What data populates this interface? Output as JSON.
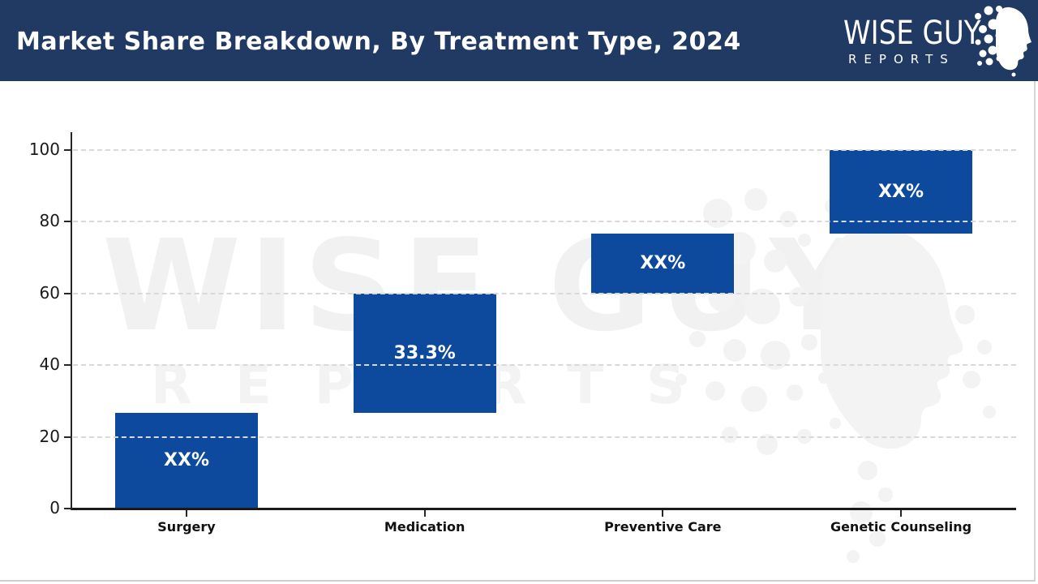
{
  "header": {
    "title": "Market Share Breakdown, By Treatment Type, 2024",
    "logo": {
      "line1": "WISE GUY",
      "line2": "REPORTS",
      "icon": "dotted-head-profile-icon"
    }
  },
  "watermark": {
    "line1": "WISE GUY",
    "line2": "REPORTS",
    "icon": "dotted-head-profile-watermark"
  },
  "colors": {
    "header_bg": "#203a64",
    "bar": "#0d4a9e",
    "bar_label": "#ffffff",
    "grid": "#d9d9d9",
    "axis": "#1a1a1a",
    "watermark": "#f1f1f1"
  },
  "chart_data": {
    "type": "bar",
    "subtype": "waterfall",
    "title": "Market Share Breakdown, By Treatment Type, 2024",
    "categories": [
      "Surgery",
      "Medication",
      "Preventive Care",
      "Genetic Counseling"
    ],
    "segments": [
      {
        "category": "Surgery",
        "start": 0,
        "end": 26.7,
        "value_label": "XX%"
      },
      {
        "category": "Medication",
        "start": 26.7,
        "end": 60,
        "value_label": "33.3%"
      },
      {
        "category": "Preventive Care",
        "start": 60,
        "end": 76.7,
        "value_label": "XX%"
      },
      {
        "category": "Genetic Counseling",
        "start": 76.7,
        "end": 100,
        "value_label": "XX%"
      }
    ],
    "yticks": [
      0,
      20,
      40,
      60,
      80,
      100
    ],
    "ylim": [
      0,
      105
    ],
    "xlabel": "",
    "ylabel": "",
    "legend": false,
    "grid": "horizontal-dashed",
    "bar_orientation": "vertical"
  }
}
